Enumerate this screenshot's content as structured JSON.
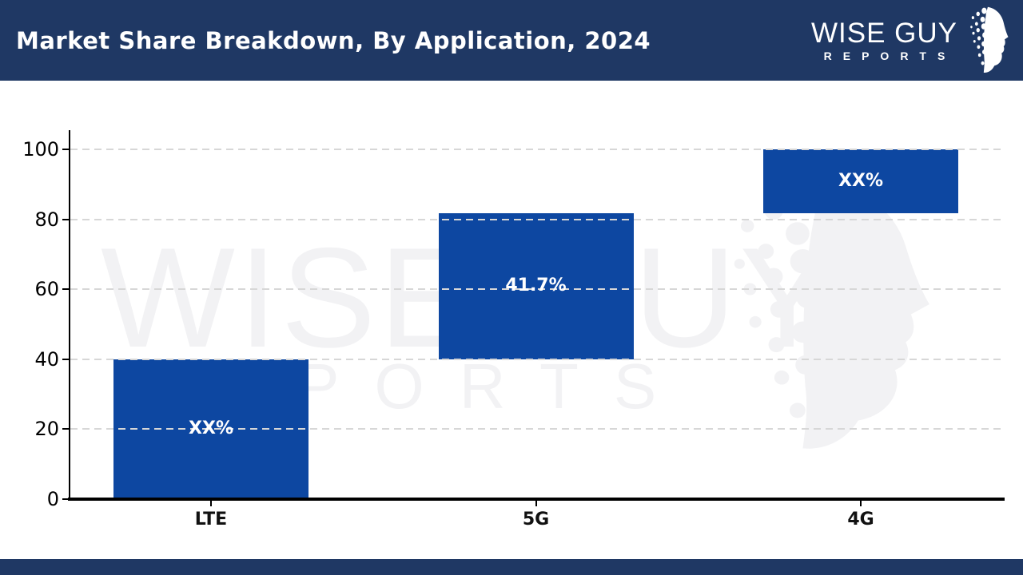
{
  "header": {
    "title": "Market Share Breakdown, By Application, 2024",
    "logo": {
      "line1": "WISE GUY",
      "line2": "REPORTS"
    }
  },
  "watermark": {
    "line1": "WISE GUY",
    "line2": "REPORTS"
  },
  "chart_data": {
    "type": "bar",
    "subtype": "floating-stacked-breakdown",
    "title": "Market Share Breakdown, By Application, 2024",
    "categories": [
      "LTE",
      "5G",
      "4G"
    ],
    "series": [
      {
        "name": "Market share (%)",
        "segments": [
          {
            "category": "LTE",
            "from": 0,
            "to": 40,
            "label": "XX%"
          },
          {
            "category": "5G",
            "from": 40,
            "to": 81.7,
            "label": "41.7%"
          },
          {
            "category": "4G",
            "from": 81.7,
            "to": 100,
            "label": "XX%"
          }
        ]
      }
    ],
    "xlabel": "",
    "ylabel": "",
    "ylim": [
      0,
      100
    ],
    "yticks": [
      0,
      20,
      40,
      60,
      80,
      100
    ],
    "grid": "horizontal-dashed",
    "legend": "none",
    "colors": {
      "bar": "#0d47a1",
      "bar_label": "#ffffff",
      "grid": "#d7d7d7",
      "axis": "#000000",
      "header_bg": "#1f3864",
      "header_text": "#ffffff",
      "watermark": "#f2f2f4"
    }
  }
}
